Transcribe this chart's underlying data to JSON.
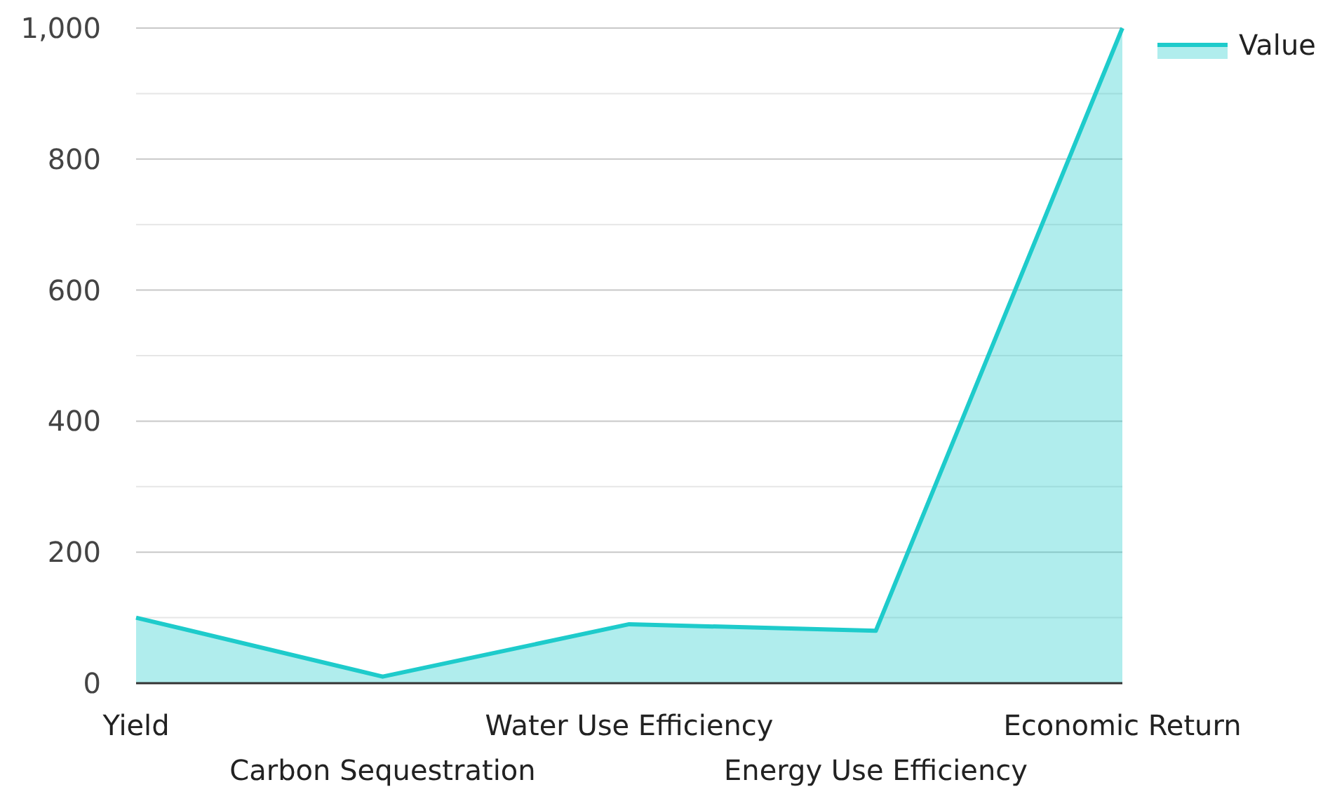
{
  "chart_data": {
    "type": "area",
    "categories": [
      "Yield",
      "Carbon Sequestration",
      "Water Use Efficiency",
      "Energy Use Efficiency",
      "Economic Return"
    ],
    "series": [
      {
        "name": "Value",
        "color": "#1ecbcb",
        "values": [
          100,
          10,
          90,
          80,
          1000
        ]
      }
    ],
    "ylim": [
      0,
      1000
    ],
    "yticks": [
      0,
      {
        "value": 100,
        "label": null
      },
      200,
      {
        "value": 300,
        "label": null
      },
      400,
      {
        "value": 500,
        "label": null
      },
      600,
      {
        "value": 700,
        "label": null
      },
      800,
      {
        "value": 900,
        "label": null
      },
      {
        "value": 1000,
        "label": "1,000"
      }
    ],
    "grid": "y",
    "legend": "top right"
  }
}
